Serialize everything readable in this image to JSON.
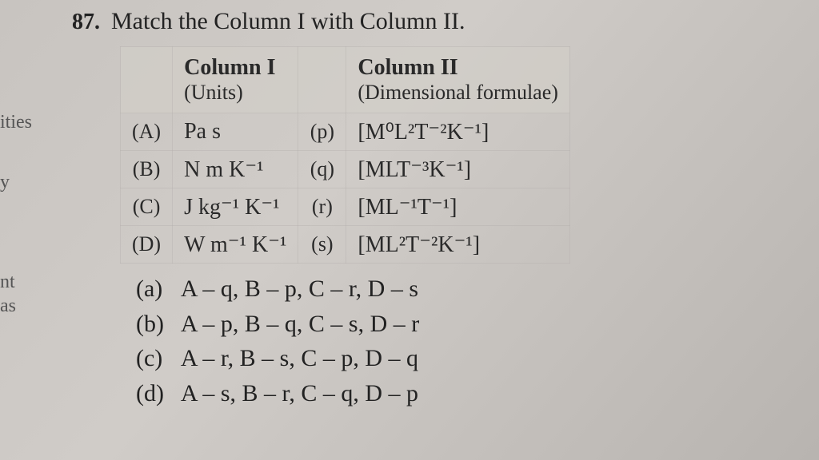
{
  "margin": {
    "ities": "ities",
    "y": "y",
    "nt": "nt",
    "as": "as"
  },
  "question": {
    "number": "87.",
    "text": "Match the Column I with Column II."
  },
  "table": {
    "headers": {
      "col1_title": "Column I",
      "col1_sub": "(Units)",
      "col2_title": "Column II",
      "col2_sub": "(Dimensional formulae)"
    },
    "rows": [
      {
        "labelA": "(A)",
        "unit": "Pa s",
        "labelB": "(p)",
        "dim": "[M⁰L²T⁻²K⁻¹]"
      },
      {
        "labelA": "(B)",
        "unit": "N m K⁻¹",
        "labelB": "(q)",
        "dim": "[MLT⁻³K⁻¹]"
      },
      {
        "labelA": "(C)",
        "unit": "J kg⁻¹ K⁻¹",
        "labelB": "(r)",
        "dim": "[ML⁻¹T⁻¹]"
      },
      {
        "labelA": "(D)",
        "unit": "W m⁻¹ K⁻¹",
        "labelB": "(s)",
        "dim": "[ML²T⁻²K⁻¹]"
      }
    ]
  },
  "options": [
    {
      "label": "(a)",
      "text": "A – q, B – p, C – r, D – s"
    },
    {
      "label": "(b)",
      "text": "A – p, B – q, C – s, D – r"
    },
    {
      "label": "(c)",
      "text": "A – r, B – s, C – p, D – q"
    },
    {
      "label": "(d)",
      "text": "A – s, B – r, C – q, D – p"
    }
  ],
  "style": {
    "page_bg_start": "#c8c4c0",
    "page_bg_end": "#b8b4b0",
    "hdr_bg": "rgba(210,206,200,0.6)",
    "border_color": "rgba(180,176,172,0.4)",
    "text_color": "#2a2a2a",
    "qnum_fontsize": 28,
    "qtext_fontsize": 30,
    "table_fontsize": 28,
    "option_fontsize": 30
  }
}
